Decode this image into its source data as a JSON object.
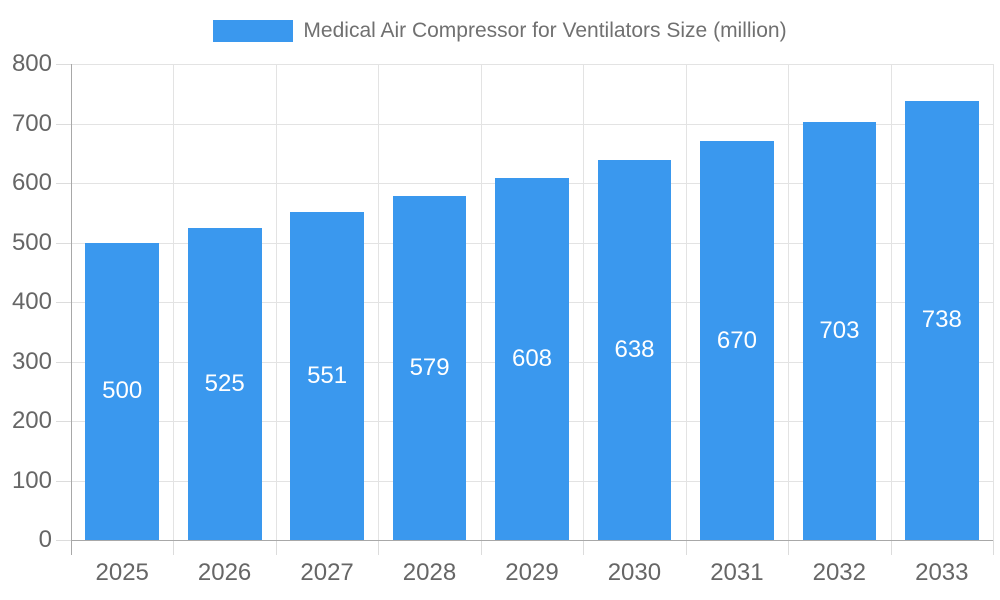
{
  "chart_data": {
    "type": "bar",
    "title": "Medical Air Compressor for Ventilators Size (million)",
    "categories": [
      "2025",
      "2026",
      "2027",
      "2028",
      "2029",
      "2030",
      "2031",
      "2032",
      "2033"
    ],
    "values": [
      500,
      525,
      551,
      579,
      608,
      638,
      670,
      703,
      738
    ],
    "xlabel": "",
    "ylabel": "",
    "ylim": [
      0,
      800
    ],
    "yticks": [
      0,
      100,
      200,
      300,
      400,
      500,
      600,
      700,
      800
    ],
    "grid": true,
    "legend_position": "top-center",
    "value_label_position": "inside-center",
    "colors": {
      "bar": "#3A98EE",
      "value_label": "#FFFFFF",
      "grid": "#E3E3E3",
      "tick": "#DCDCDC",
      "axis_line": "#A8A8A8",
      "axis_text": "#666666",
      "legend_text": "#707070",
      "background": "#FFFFFF"
    }
  }
}
